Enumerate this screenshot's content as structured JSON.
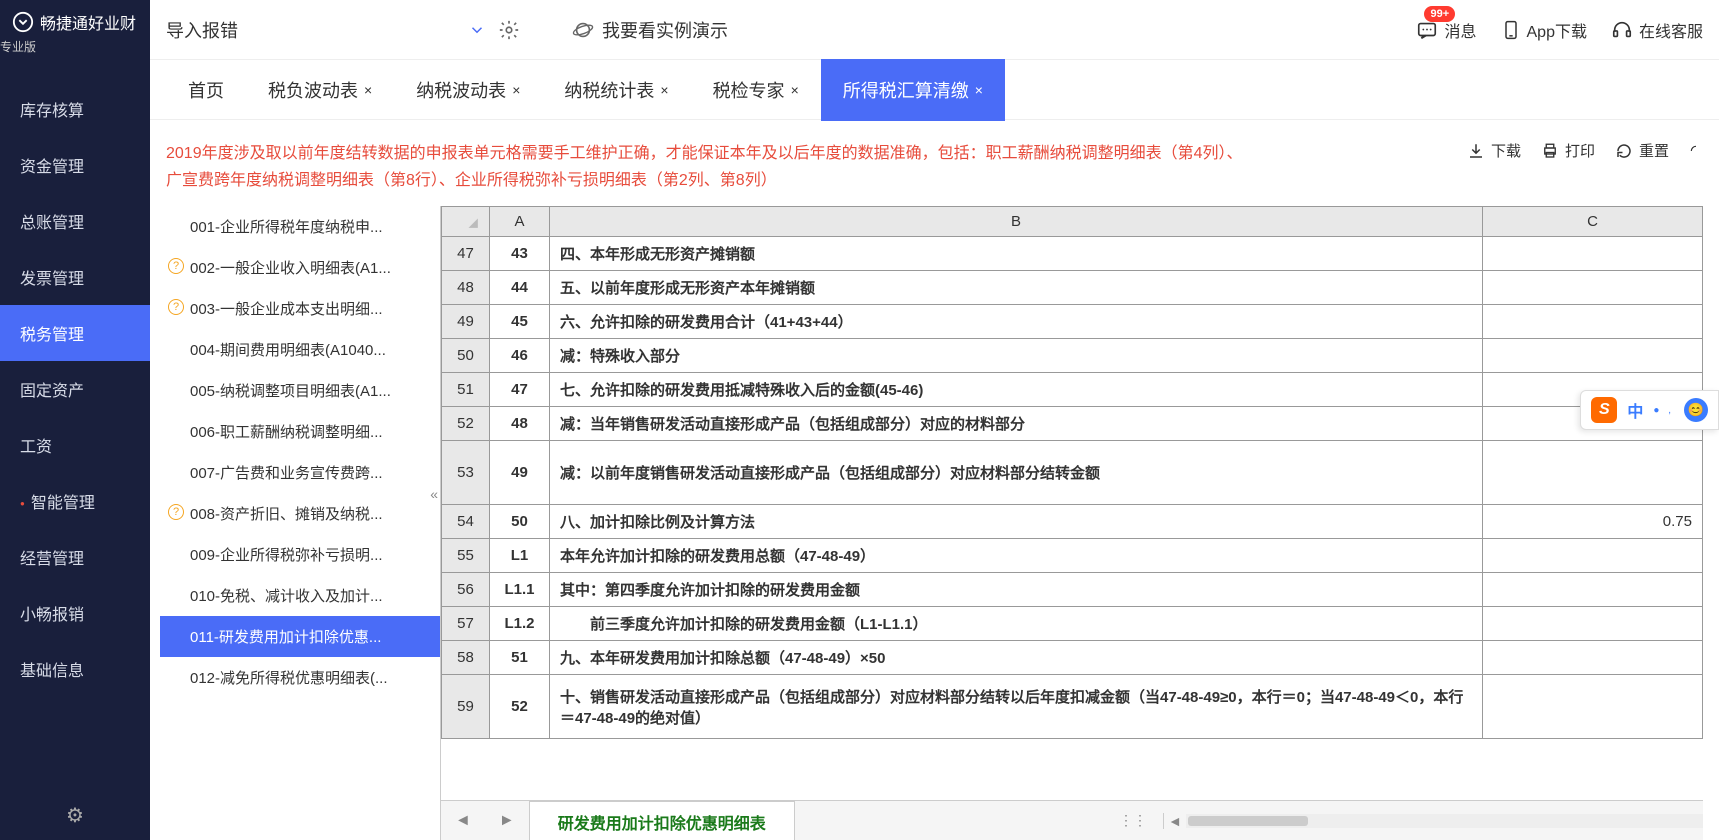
{
  "app": {
    "logo_text": "畅捷通好业财",
    "version": "专业版"
  },
  "sidebar_nav": [
    {
      "label": "库存核算",
      "active": false,
      "dot": false
    },
    {
      "label": "资金管理",
      "active": false,
      "dot": false
    },
    {
      "label": "总账管理",
      "active": false,
      "dot": false
    },
    {
      "label": "发票管理",
      "active": false,
      "dot": false
    },
    {
      "label": "税务管理",
      "active": true,
      "dot": false
    },
    {
      "label": "固定资产",
      "active": false,
      "dot": false
    },
    {
      "label": "工资",
      "active": false,
      "dot": false
    },
    {
      "label": "智能管理",
      "active": false,
      "dot": true
    },
    {
      "label": "经营管理",
      "active": false,
      "dot": false
    },
    {
      "label": "小畅报销",
      "active": false,
      "dot": false
    },
    {
      "label": "基础信息",
      "active": false,
      "dot": false
    }
  ],
  "topbar": {
    "dropdown_label": "导入报错",
    "demo_text": "我要看实例演示",
    "message_label": "消息",
    "message_badge": "99+",
    "app_download": "App下载",
    "online_service": "在线客服"
  },
  "tabs": [
    {
      "label": "首页",
      "closable": false,
      "active": false
    },
    {
      "label": "税负波动表",
      "closable": true,
      "active": false
    },
    {
      "label": "纳税波动表",
      "closable": true,
      "active": false
    },
    {
      "label": "纳税统计表",
      "closable": true,
      "active": false
    },
    {
      "label": "税检专家",
      "closable": true,
      "active": false
    },
    {
      "label": "所得税汇算清缴",
      "closable": true,
      "active": true
    }
  ],
  "warning": "2019年度涉及取以前年度结转数据的申报表单元格需要手工维护正确，才能保证本年及以后年度的数据准确，包括：职工薪酬纳税调整明细表（第4列）、广宣费跨年度纳税调整明细表（第8行）、企业所得税弥补亏损明细表（第2列、第8列）",
  "actions": {
    "download": "下载",
    "print": "打印",
    "reset": "重置"
  },
  "form_list": [
    {
      "label": "001-企业所得税年度纳税申...",
      "q": false,
      "active": false
    },
    {
      "label": "002-一般企业收入明细表(A1...",
      "q": true,
      "active": false
    },
    {
      "label": "003-一般企业成本支出明细...",
      "q": true,
      "active": false
    },
    {
      "label": "004-期间费用明细表(A1040...",
      "q": false,
      "active": false
    },
    {
      "label": "005-纳税调整项目明细表(A1...",
      "q": false,
      "active": false
    },
    {
      "label": "006-职工薪酬纳税调整明细...",
      "q": false,
      "active": false
    },
    {
      "label": "007-广告费和业务宣传费跨...",
      "q": false,
      "active": false
    },
    {
      "label": "008-资产折旧、摊销及纳税...",
      "q": true,
      "active": false
    },
    {
      "label": "009-企业所得税弥补亏损明...",
      "q": false,
      "active": false
    },
    {
      "label": "010-免税、减计收入及加计...",
      "q": false,
      "active": false
    },
    {
      "label": "011-研发费用加计扣除优惠...",
      "q": false,
      "active": true
    },
    {
      "label": "012-减免所得税优惠明细表(...",
      "q": false,
      "active": false
    }
  ],
  "sheet": {
    "col_headers": [
      "A",
      "B",
      "C"
    ],
    "rows": [
      {
        "rn": "47",
        "a": "43",
        "b": "四、本年形成无形资产摊销额",
        "c": ""
      },
      {
        "rn": "48",
        "a": "44",
        "b": "五、以前年度形成无形资产本年摊销额",
        "c": ""
      },
      {
        "rn": "49",
        "a": "45",
        "b": "六、允许扣除的研发费用合计（41+43+44）",
        "c": ""
      },
      {
        "rn": "50",
        "a": "46",
        "b": "减：特殊收入部分",
        "c": ""
      },
      {
        "rn": "51",
        "a": "47",
        "b": "七、允许扣除的研发费用抵减特殊收入后的金额(45-46)",
        "c": ""
      },
      {
        "rn": "52",
        "a": "48",
        "b": "减：当年销售研发活动直接形成产品（包括组成部分）对应的材料部分",
        "c": ""
      },
      {
        "rn": "53",
        "a": "49",
        "b": "减：以前年度销售研发活动直接形成产品（包括组成部分）对应材料部分结转金额",
        "c": "",
        "tall": true
      },
      {
        "rn": "54",
        "a": "50",
        "b": "八、加计扣除比例及计算方法",
        "c": "0.75"
      },
      {
        "rn": "55",
        "a": "L1",
        "b": "本年允许加计扣除的研发费用总额（47-48-49）",
        "c": ""
      },
      {
        "rn": "56",
        "a": "L1.1",
        "b": "其中：第四季度允许加计扣除的研发费用金额",
        "c": ""
      },
      {
        "rn": "57",
        "a": "L1.2",
        "b": "  前三季度允许加计扣除的研发费用金额（L1-L1.1）",
        "c": ""
      },
      {
        "rn": "58",
        "a": "51",
        "b": "九、本年研发费用加计扣除总额（47-48-49）×50",
        "c": ""
      },
      {
        "rn": "59",
        "a": "52",
        "b": "十、销售研发活动直接形成产品（包括组成部分）对应材料部分结转以后年度扣减金额（当47-48-49≥0，本行＝0；当47-48-49＜0，本行＝47-48-49的绝对值）",
        "c": "",
        "tall": true
      }
    ],
    "tab_name": "研发费用加计扣除优惠明细表"
  },
  "float": {
    "s_label": "S",
    "center_text": "中"
  },
  "colors": {
    "sidebar_bg": "#191f3c",
    "accent": "#4a6cf7",
    "warning_text": "#e74c3c",
    "sheet_tab_text": "#1a7a1a"
  }
}
